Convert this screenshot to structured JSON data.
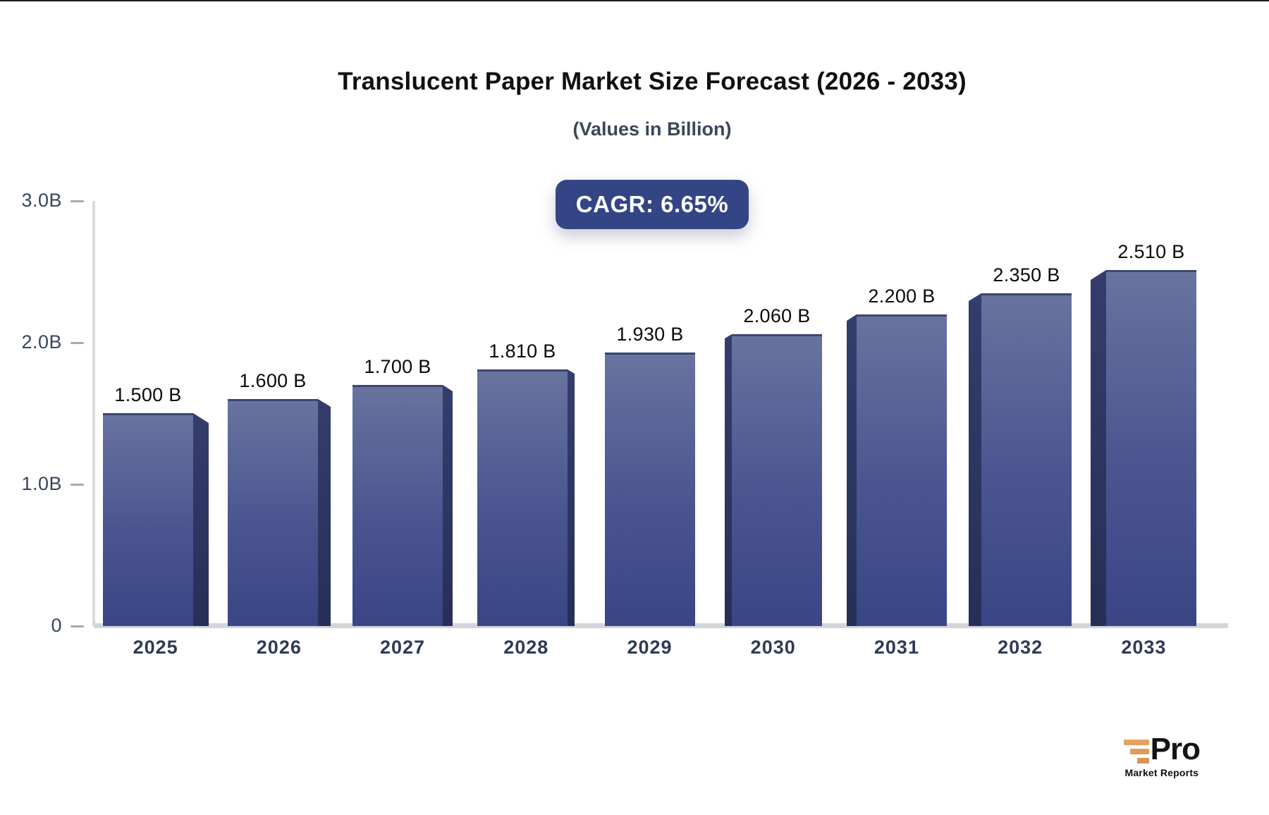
{
  "page": {
    "background": "#ffffff",
    "top_border_color": "#1b1b24"
  },
  "header": {
    "title": "Translucent Paper Market Size Forecast (2026 - 2033)",
    "subtitle": "(Values in Billion)"
  },
  "badge": {
    "label": "CAGR: 6.65%",
    "bg_color": "#344585",
    "text_color": "#ffffff"
  },
  "chart_data": {
    "type": "bar",
    "title": "Translucent Paper Market Size Forecast (2026 - 2033)",
    "subtitle": "(Values in Billion)",
    "categories": [
      "2025",
      "2026",
      "2027",
      "2028",
      "2029",
      "2030",
      "2031",
      "2032",
      "2033"
    ],
    "values": [
      1.5,
      1.6,
      1.7,
      1.81,
      1.93,
      2.06,
      2.2,
      2.35,
      2.51
    ],
    "value_labels": [
      "1.500 B",
      "1.600 B",
      "1.700 B",
      "1.810 B",
      "1.930 B",
      "2.060 B",
      "2.200 B",
      "2.350 B",
      "2.510 B"
    ],
    "y_ticks": [
      {
        "label": "3.0B",
        "value": 3.0
      },
      {
        "label": "2.0B",
        "value": 2.0
      },
      {
        "label": "1.0B",
        "value": 1.0
      },
      {
        "label": "0",
        "value": 0.0
      }
    ],
    "ylim": [
      0,
      3.0
    ],
    "xlabel": "",
    "ylabel": "",
    "grid": false,
    "legend": "none",
    "bar_colors": {
      "front_top": "#68739f",
      "front_bottom": "#3a4585",
      "side": "#2b3460",
      "top_edge": "#3c466f"
    }
  },
  "logo": {
    "brand": "Pro",
    "tagline": "Market Reports",
    "accent_colors": [
      "#E5A264",
      "#E09B5B",
      "#D99455"
    ]
  }
}
